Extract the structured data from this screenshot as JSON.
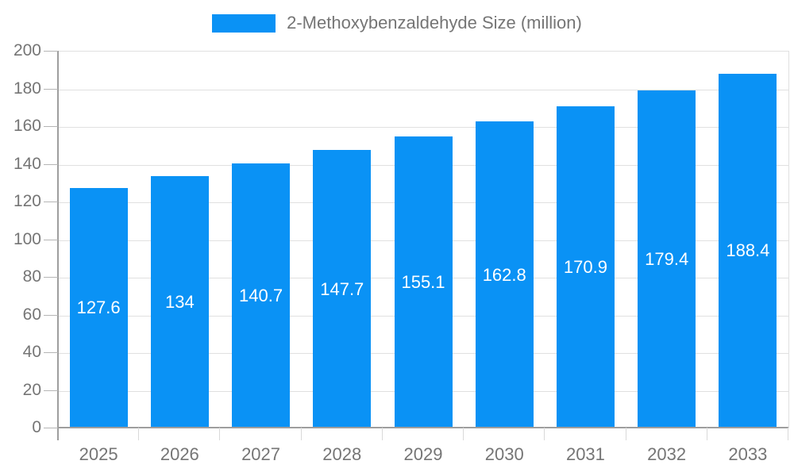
{
  "chart_data": {
    "type": "bar",
    "title": "2-Methoxybenzaldehyde Size (million)",
    "categories": [
      "2025",
      "2026",
      "2027",
      "2028",
      "2029",
      "2030",
      "2031",
      "2032",
      "2033"
    ],
    "series": [
      {
        "name": "2-Methoxybenzaldehyde Size (million)",
        "values": [
          127.6,
          134,
          140.7,
          147.7,
          155.1,
          162.8,
          170.9,
          179.4,
          188.4
        ]
      }
    ],
    "xlabel": "",
    "ylabel": "",
    "ylim": [
      0,
      200
    ],
    "ytick_step": 20,
    "grid": "on",
    "legend_position": "top-center",
    "bar_color": "#0a92f5",
    "value_label_color": "#ffffff",
    "axis_text_color": "#757575",
    "grid_color": "#e0e0e0",
    "axis_line_color": "#9e9e9e"
  }
}
